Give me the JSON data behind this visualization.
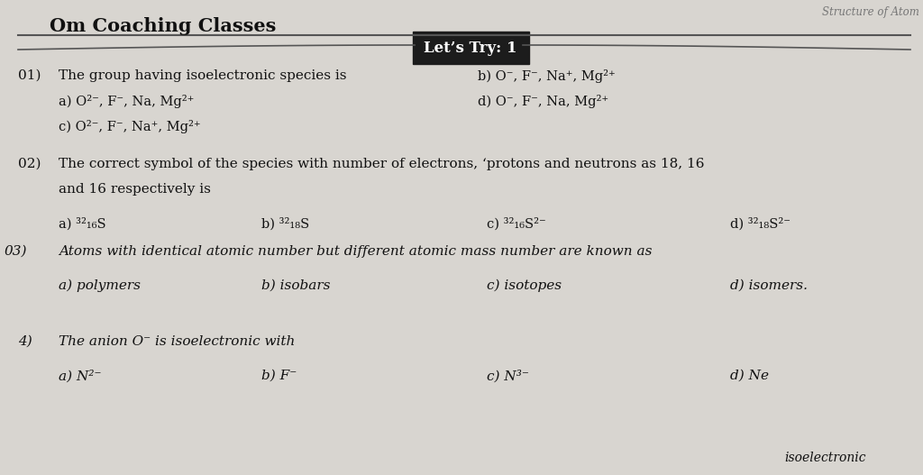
{
  "bg_color": "#d8d5d0",
  "page_color": "#e8e6e2",
  "title_text": "Om Coaching Classes",
  "header_label": "Let’s Try: 1",
  "header_bg": "#1c1c1c",
  "header_fg": "#ffffff",
  "top_right_text": "Structure of Atom",
  "line_color": "#555555",
  "text_color": "#111111",
  "q01_num": "01)",
  "q01_text": "The group having isoelectronic species is",
  "q01_a": "a) O²⁻, F⁻, Na, Mg²⁺",
  "q01_b": "b) O⁻, F⁻, Na⁺, Mg²⁺",
  "q01_c": "c) O²⁻, F⁻, Na⁺, Mg²⁺",
  "q01_d": "d) O⁻, F⁻, Na, Mg²⁺",
  "q02_num": "02)",
  "q02_text": "The correct symbol of the species with number of electrons, ‘protons and neutrons as 18, 16",
  "q02_text2": "and 16 respectively is",
  "q02_a": "a) ³²₁₆S",
  "q02_b": "b) ³²₁₈S",
  "q02_c": "c) ³²₁₆S²⁻",
  "q02_d": "d) ³²₁₈S²⁻",
  "q03_num": "03)",
  "q03_text": "Atoms with identical atomic number but different atomic mass number are known as",
  "q03_a": "a) polymers",
  "q03_b": "b) isobars",
  "q03_c": "c) isotopes",
  "q03_d": "d) isomers.",
  "q04_num": "4)",
  "q04_text": "The anion O⁻ is isoelectronic with",
  "q04_a": "a) N²⁻",
  "q04_b": "b) F⁻",
  "q04_c": "c) N³⁻",
  "q04_d": "d) Ne",
  "footer_text": "isoelectronic"
}
